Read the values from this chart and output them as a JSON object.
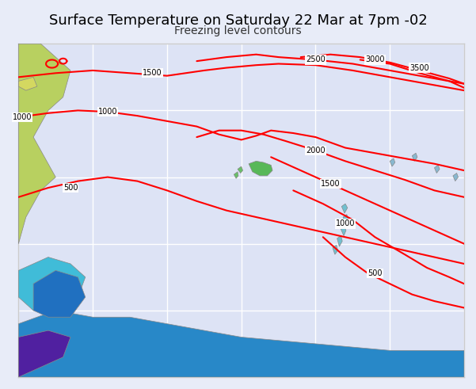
{
  "title": "Surface Temperature on Saturday 22 Mar at 7pm -02",
  "subtitle": "Freezing level contours",
  "title_fontsize": 13,
  "subtitle_fontsize": 10,
  "bg_color": "#e8ecf8",
  "ocean_color": "#dde3f5",
  "grid_color": "#ffffff",
  "grid_linewidth": 1.0,
  "border_color": "#cccccc",
  "contour_color": "#ff0000",
  "contour_linewidth": 1.5,
  "contour_label_fontsize": 7,
  "xlim": [
    -70,
    -10
  ],
  "ylim": [
    -70,
    -45
  ],
  "figsize": [
    6.01,
    4.91
  ],
  "dpi": 100
}
